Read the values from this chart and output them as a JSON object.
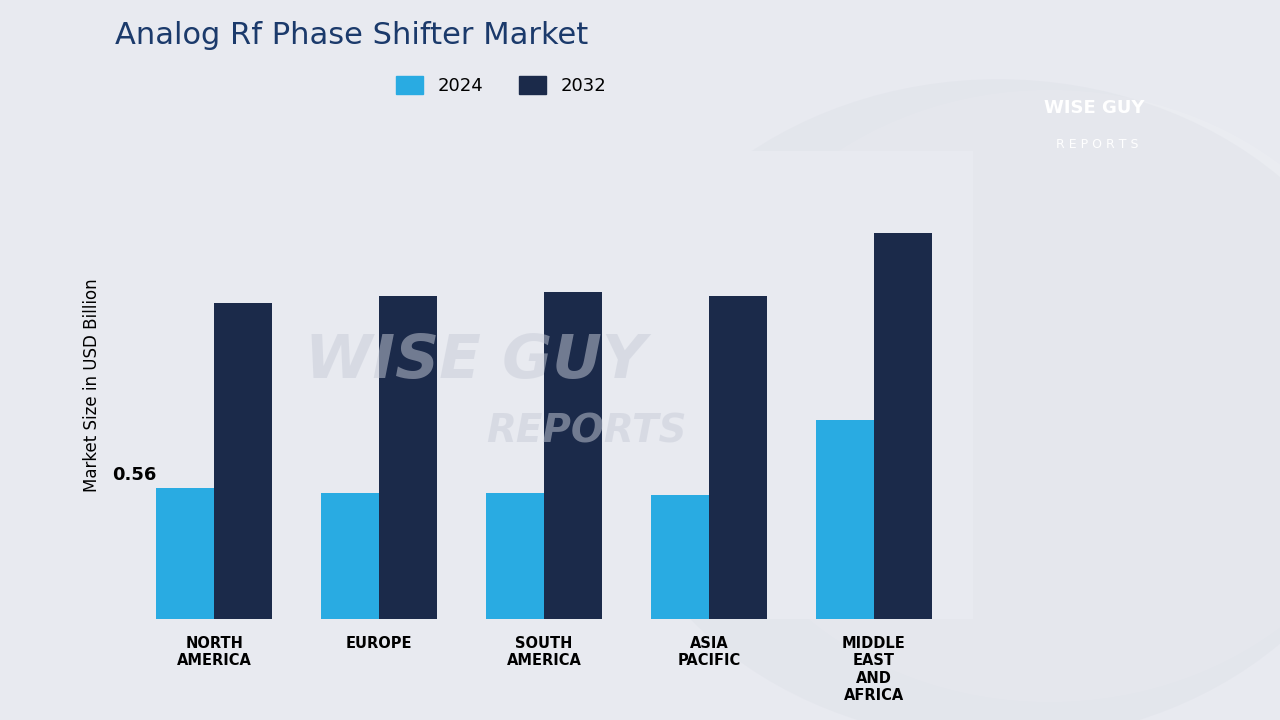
{
  "title": "Analog Rf Phase Shifter Market",
  "ylabel": "Market Size in USD Billion",
  "categories": [
    "NORTH\nAMERICA",
    "EUROPE",
    "SOUTH\nAMERICA",
    "ASIA\nPACIFIC",
    "MIDDLE\nEAST\nAND\nAFRICA"
  ],
  "values_2024": [
    0.56,
    0.54,
    0.54,
    0.53,
    0.85
  ],
  "values_2032": [
    1.35,
    1.38,
    1.4,
    1.38,
    1.65
  ],
  "color_2024": "#29ABE2",
  "color_2032": "#1B2A4A",
  "annotation": "0.56",
  "background_color": "#E8EAF0",
  "legend_labels": [
    "2024",
    "2032"
  ],
  "title_color": "#1B3A6B",
  "bar_width": 0.35,
  "ylim": [
    0,
    2.0
  ],
  "right_panel_color": "#1B2A4A"
}
